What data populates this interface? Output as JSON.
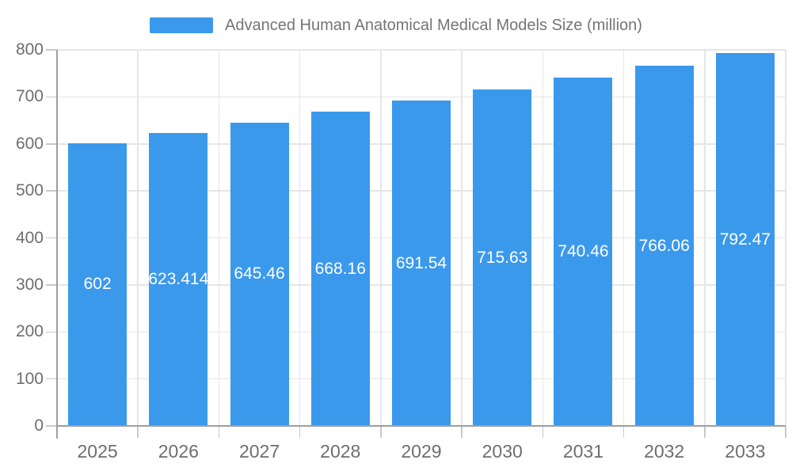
{
  "chart_data": {
    "type": "bar",
    "title": "Advanced Human Anatomical Medical Models Size (million)",
    "legend": [
      "Advanced Human Anatomical Medical Models Size (million)"
    ],
    "legend_position": "top",
    "categories": [
      "2025",
      "2026",
      "2027",
      "2028",
      "2029",
      "2030",
      "2031",
      "2032",
      "2033"
    ],
    "series": [
      {
        "name": "Advanced Human Anatomical Medical Models Size (million)",
        "values": [
          602,
          623.414,
          645.46,
          668.16,
          691.54,
          715.63,
          740.46,
          766.06,
          792.47
        ]
      }
    ],
    "bar_labels": [
      "602",
      "623.414",
      "645.46",
      "668.16",
      "691.54",
      "715.63",
      "740.46",
      "766.06",
      "792.47"
    ],
    "xlabel": "",
    "ylabel": "",
    "ylim": [
      0,
      800
    ],
    "yticks": [
      0,
      100,
      200,
      300,
      400,
      500,
      600,
      700,
      800
    ],
    "grid": true
  },
  "colors": {
    "bar": "#3b99ec",
    "bar_value_text": "#ffffff",
    "title_text": "#757575",
    "tick_text": "#6e6e6e",
    "gridline": "#e6e6e6",
    "axis_line": "#9e9e9e",
    "tick_mark": "#c9c9c9",
    "background": "#ffffff"
  }
}
